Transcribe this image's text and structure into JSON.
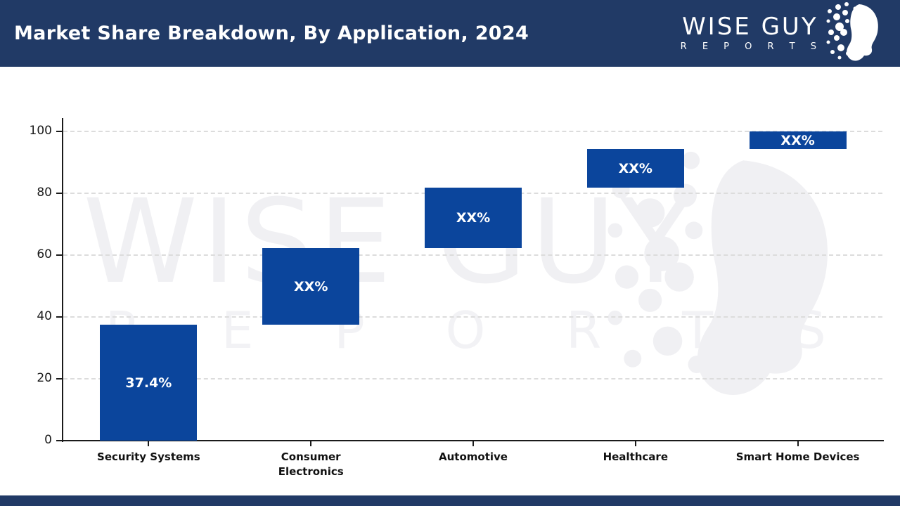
{
  "header": {
    "title": "Market Share Breakdown, By Application, 2024",
    "logo": {
      "line1": "WISE GUY",
      "line2": "R E P O R T S"
    }
  },
  "watermark": {
    "line1": "WISE GUY",
    "line2": "R E P O R T S"
  },
  "colors": {
    "header_bg": "#213a66",
    "footer_bg": "#213a66",
    "bar_fill": "#0b459c",
    "bar_label": "#ffffff",
    "grid": "#dcdcdc",
    "axis": "#1a1a1a",
    "watermark": "#f0f0f3"
  },
  "chart_data": {
    "type": "bar",
    "subtype": "waterfall",
    "title": "Market Share Breakdown, By Application, 2024",
    "categories": [
      "Security Systems",
      "Consumer\nElectronics",
      "Automotive",
      "Healthcare",
      "Smart Home Devices"
    ],
    "segments": [
      {
        "category": "Security Systems",
        "start": 0,
        "end": 37.4,
        "label": "37.4%"
      },
      {
        "category": "Consumer Electronics",
        "start": 37.4,
        "end": 62.3,
        "label": "XX%"
      },
      {
        "category": "Automotive",
        "start": 62.3,
        "end": 81.8,
        "label": "XX%"
      },
      {
        "category": "Healthcare",
        "start": 81.8,
        "end": 94.3,
        "label": "XX%"
      },
      {
        "category": "Smart Home Devices",
        "start": 94.3,
        "end": 100,
        "label": "XX%"
      }
    ],
    "y_ticks": [
      0,
      20,
      40,
      60,
      80,
      100
    ],
    "ylim": [
      0,
      105
    ],
    "xlabel": "",
    "ylabel": "",
    "grid": "dashed-horizontal",
    "legend": "none"
  }
}
